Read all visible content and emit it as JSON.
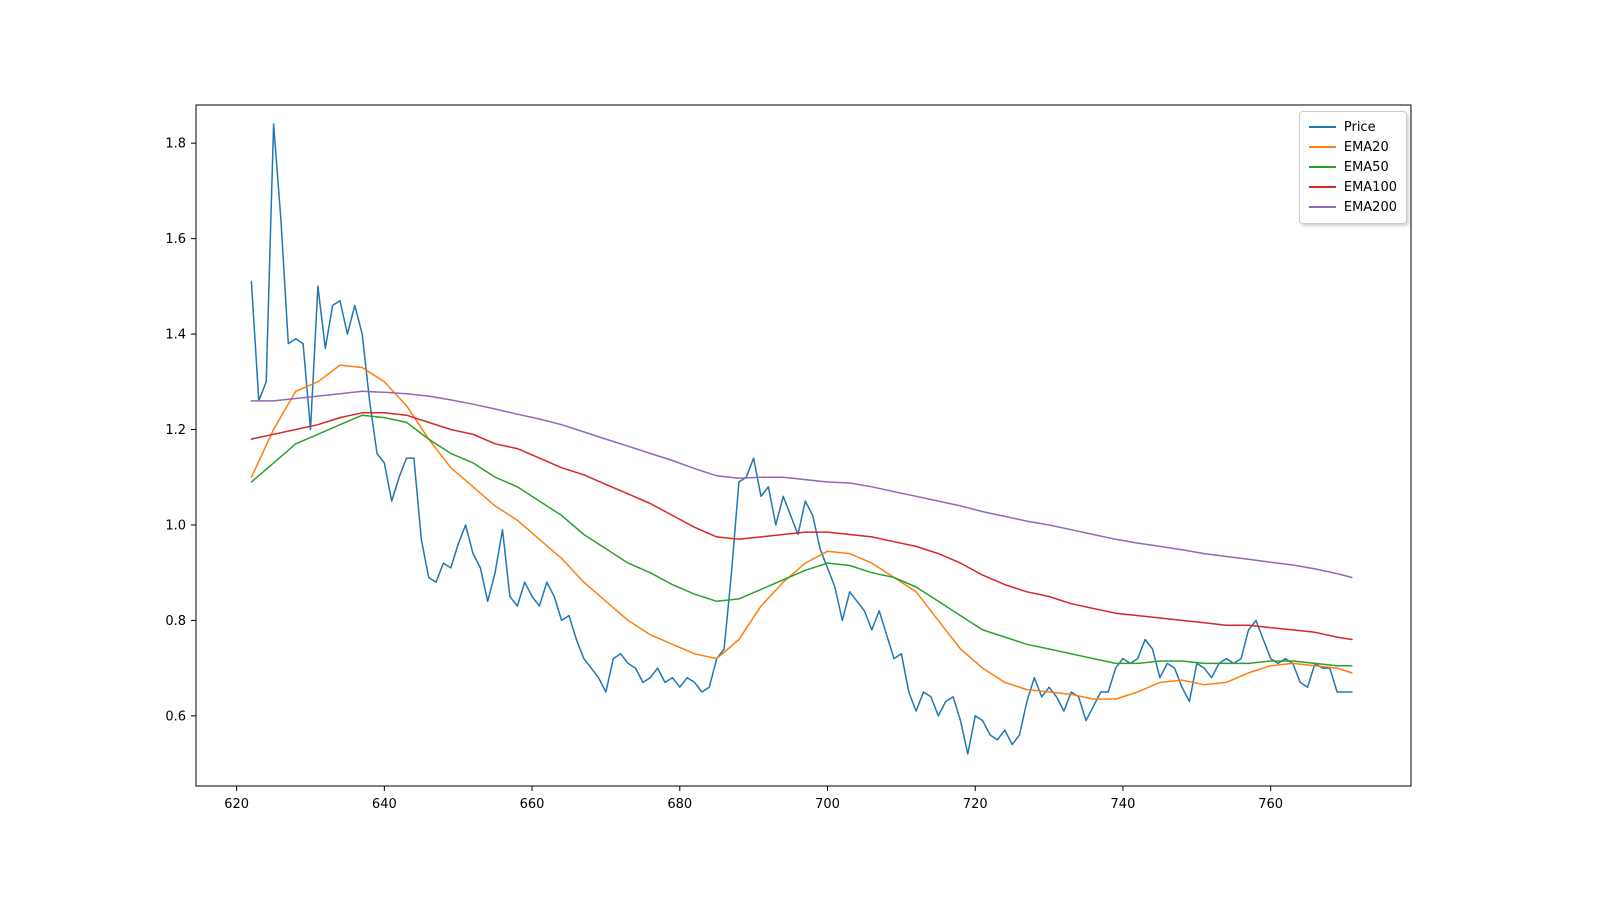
{
  "figure": {
    "background_color": "#ffffff",
    "axes_edge_color": "#000000"
  },
  "chart_data": {
    "type": "line",
    "title": "",
    "xlabel": "",
    "ylabel": "",
    "grid": false,
    "xlim": [
      614.5,
      779.0
    ],
    "ylim": [
      0.453,
      1.88
    ],
    "x_ticks": [
      620,
      640,
      660,
      680,
      700,
      720,
      740,
      760
    ],
    "y_ticks": [
      0.6,
      0.8,
      1.0,
      1.2,
      1.4,
      1.6,
      1.8
    ],
    "legend": {
      "position": "upper right",
      "entries": [
        "Price",
        "EMA20",
        "EMA50",
        "EMA100",
        "EMA200"
      ]
    },
    "series": [
      {
        "name": "Price",
        "color": "#1f77b4",
        "x_start": 622,
        "x_step": 1,
        "values": [
          1.51,
          1.26,
          1.3,
          1.84,
          1.64,
          1.38,
          1.39,
          1.38,
          1.2,
          1.5,
          1.37,
          1.46,
          1.47,
          1.4,
          1.46,
          1.4,
          1.26,
          1.15,
          1.13,
          1.05,
          1.1,
          1.14,
          1.14,
          0.97,
          0.89,
          0.88,
          0.92,
          0.91,
          0.96,
          1.0,
          0.94,
          0.91,
          0.84,
          0.9,
          0.99,
          0.85,
          0.83,
          0.88,
          0.85,
          0.83,
          0.88,
          0.85,
          0.8,
          0.81,
          0.76,
          0.72,
          0.7,
          0.68,
          0.65,
          0.72,
          0.73,
          0.71,
          0.7,
          0.67,
          0.68,
          0.7,
          0.67,
          0.68,
          0.66,
          0.68,
          0.67,
          0.65,
          0.66,
          0.72,
          0.74,
          0.9,
          1.09,
          1.1,
          1.14,
          1.06,
          1.08,
          1.0,
          1.06,
          1.02,
          0.98,
          1.05,
          1.02,
          0.95,
          0.91,
          0.87,
          0.8,
          0.86,
          0.84,
          0.82,
          0.78,
          0.82,
          0.77,
          0.72,
          0.73,
          0.65,
          0.61,
          0.65,
          0.64,
          0.6,
          0.63,
          0.64,
          0.59,
          0.52,
          0.6,
          0.59,
          0.56,
          0.55,
          0.57,
          0.54,
          0.56,
          0.63,
          0.68,
          0.64,
          0.66,
          0.64,
          0.61,
          0.65,
          0.64,
          0.59,
          0.62,
          0.65,
          0.65,
          0.7,
          0.72,
          0.71,
          0.72,
          0.76,
          0.74,
          0.68,
          0.71,
          0.7,
          0.66,
          0.63,
          0.71,
          0.7,
          0.68,
          0.71,
          0.72,
          0.71,
          0.72,
          0.78,
          0.8,
          0.76,
          0.72,
          0.71,
          0.72,
          0.71,
          0.67,
          0.66,
          0.71,
          0.7,
          0.7,
          0.65,
          0.65,
          0.65
        ]
      },
      {
        "name": "EMA20",
        "color": "#ff7f0e",
        "x": [
          622,
          625,
          628,
          631,
          634,
          637,
          640,
          643,
          646,
          649,
          652,
          655,
          658,
          661,
          664,
          667,
          670,
          673,
          676,
          679,
          682,
          685,
          688,
          691,
          694,
          697,
          700,
          703,
          706,
          709,
          712,
          715,
          718,
          721,
          724,
          727,
          730,
          733,
          736,
          739,
          742,
          745,
          748,
          751,
          754,
          757,
          760,
          763,
          766,
          769,
          771
        ],
        "values": [
          1.1,
          1.2,
          1.28,
          1.3,
          1.335,
          1.33,
          1.3,
          1.25,
          1.18,
          1.12,
          1.08,
          1.04,
          1.01,
          0.97,
          0.93,
          0.88,
          0.84,
          0.8,
          0.77,
          0.75,
          0.73,
          0.72,
          0.76,
          0.83,
          0.88,
          0.92,
          0.945,
          0.94,
          0.92,
          0.89,
          0.86,
          0.8,
          0.74,
          0.7,
          0.67,
          0.655,
          0.65,
          0.645,
          0.635,
          0.635,
          0.65,
          0.67,
          0.675,
          0.665,
          0.67,
          0.69,
          0.705,
          0.71,
          0.705,
          0.7,
          0.69
        ]
      },
      {
        "name": "EMA50",
        "color": "#2ca02c",
        "x": [
          622,
          625,
          628,
          631,
          634,
          637,
          640,
          643,
          646,
          649,
          652,
          655,
          658,
          661,
          664,
          667,
          670,
          673,
          676,
          679,
          682,
          685,
          688,
          691,
          694,
          697,
          700,
          703,
          706,
          709,
          712,
          715,
          718,
          721,
          724,
          727,
          730,
          733,
          736,
          739,
          742,
          745,
          748,
          751,
          754,
          757,
          760,
          763,
          766,
          769,
          771
        ],
        "values": [
          1.09,
          1.13,
          1.17,
          1.19,
          1.21,
          1.23,
          1.225,
          1.215,
          1.18,
          1.15,
          1.13,
          1.1,
          1.08,
          1.05,
          1.02,
          0.98,
          0.95,
          0.92,
          0.9,
          0.875,
          0.855,
          0.84,
          0.845,
          0.865,
          0.885,
          0.905,
          0.92,
          0.915,
          0.9,
          0.89,
          0.87,
          0.84,
          0.81,
          0.78,
          0.765,
          0.75,
          0.74,
          0.73,
          0.72,
          0.71,
          0.71,
          0.715,
          0.715,
          0.71,
          0.71,
          0.71,
          0.715,
          0.715,
          0.71,
          0.705,
          0.705
        ]
      },
      {
        "name": "EMA100",
        "color": "#d62728",
        "x": [
          622,
          625,
          628,
          631,
          634,
          637,
          640,
          643,
          646,
          649,
          652,
          655,
          658,
          661,
          664,
          667,
          670,
          673,
          676,
          679,
          682,
          685,
          688,
          691,
          694,
          697,
          700,
          703,
          706,
          709,
          712,
          715,
          718,
          721,
          724,
          727,
          730,
          733,
          736,
          739,
          742,
          745,
          748,
          751,
          754,
          757,
          760,
          763,
          766,
          769,
          771
        ],
        "values": [
          1.18,
          1.19,
          1.2,
          1.21,
          1.225,
          1.235,
          1.235,
          1.23,
          1.215,
          1.2,
          1.19,
          1.17,
          1.16,
          1.14,
          1.12,
          1.105,
          1.085,
          1.065,
          1.045,
          1.02,
          0.995,
          0.975,
          0.97,
          0.975,
          0.98,
          0.985,
          0.985,
          0.98,
          0.975,
          0.965,
          0.955,
          0.94,
          0.92,
          0.895,
          0.875,
          0.86,
          0.85,
          0.835,
          0.825,
          0.815,
          0.81,
          0.805,
          0.8,
          0.795,
          0.79,
          0.79,
          0.785,
          0.78,
          0.775,
          0.765,
          0.76
        ]
      },
      {
        "name": "EMA200",
        "color": "#9467bd",
        "x": [
          622,
          625,
          628,
          631,
          634,
          637,
          640,
          643,
          646,
          649,
          652,
          655,
          658,
          661,
          664,
          667,
          670,
          673,
          676,
          679,
          682,
          685,
          688,
          691,
          694,
          697,
          700,
          703,
          706,
          709,
          712,
          715,
          718,
          721,
          724,
          727,
          730,
          733,
          736,
          739,
          742,
          745,
          748,
          751,
          754,
          757,
          760,
          763,
          766,
          769,
          771
        ],
        "values": [
          1.26,
          1.26,
          1.265,
          1.27,
          1.275,
          1.28,
          1.278,
          1.275,
          1.27,
          1.262,
          1.253,
          1.243,
          1.232,
          1.222,
          1.21,
          1.195,
          1.18,
          1.165,
          1.15,
          1.135,
          1.118,
          1.103,
          1.098,
          1.1,
          1.1,
          1.095,
          1.09,
          1.088,
          1.08,
          1.07,
          1.06,
          1.05,
          1.04,
          1.028,
          1.018,
          1.008,
          1.0,
          0.99,
          0.98,
          0.97,
          0.962,
          0.955,
          0.948,
          0.94,
          0.934,
          0.928,
          0.922,
          0.916,
          0.908,
          0.898,
          0.89
        ]
      }
    ]
  }
}
